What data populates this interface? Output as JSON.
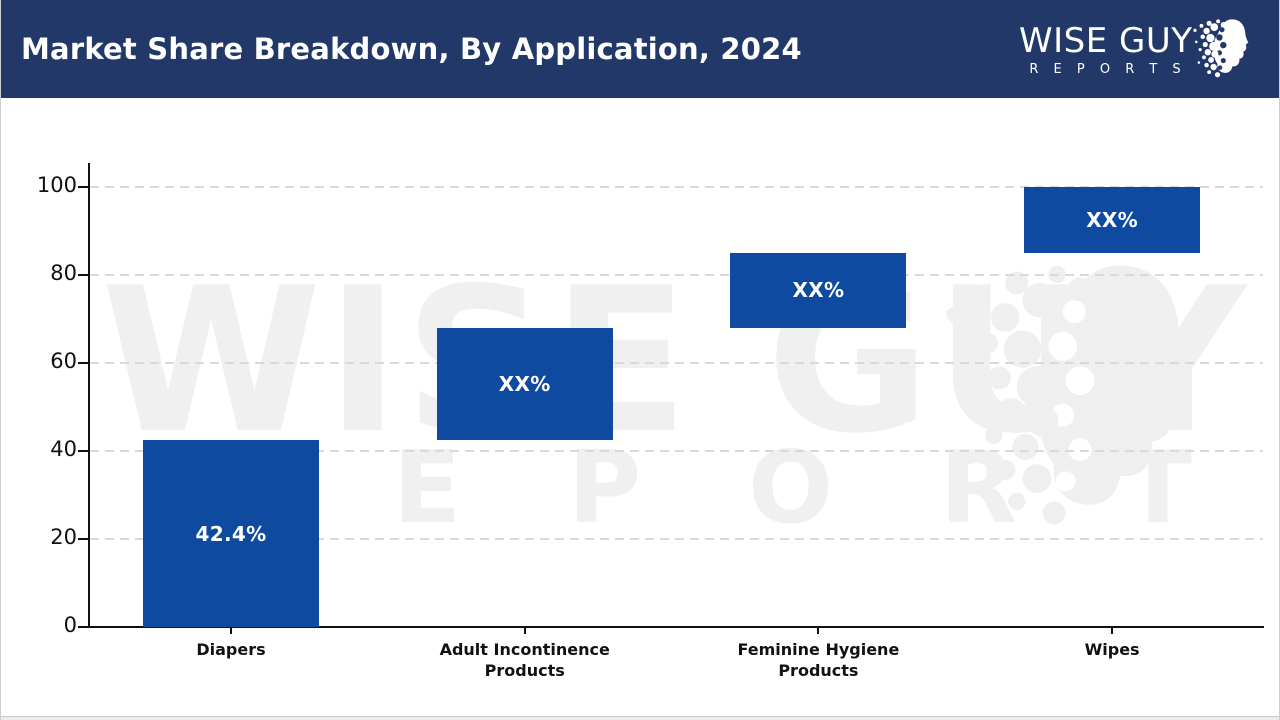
{
  "header": {
    "title": "Market Share Breakdown, By Application, 2024",
    "brand": {
      "name": "WISE GUY",
      "tagline": "R E P O R T S"
    },
    "bg_color": "#213869",
    "text_color": "#ffffff"
  },
  "watermark": {
    "line1": "WISE GUY",
    "line2": "R E P O R T S"
  },
  "chart_data": {
    "type": "bar",
    "subtype": "waterfall",
    "title": "Market Share Breakdown, By Application, 2024",
    "categories": [
      "Diapers",
      "Adult Incontinence\nProducts",
      "Feminine Hygiene\nProducts",
      "Wipes"
    ],
    "series": [
      {
        "name": "Market share (%)",
        "segments": [
          {
            "category": "Diapers",
            "start": 0,
            "end": 42.4,
            "value": 42.4,
            "label": "42.4%"
          },
          {
            "category": "Adult Incontinence Products",
            "start": 42.4,
            "end": 68,
            "value": 25.6,
            "label": "XX%"
          },
          {
            "category": "Feminine Hygiene Products",
            "start": 68,
            "end": 85,
            "value": 17,
            "label": "XX%"
          },
          {
            "category": "Wipes",
            "start": 85,
            "end": 100,
            "value": 15,
            "label": "XX%"
          }
        ]
      }
    ],
    "xlabel": "",
    "ylabel": "",
    "ylim": [
      0,
      100
    ],
    "yticks": [
      0,
      20,
      40,
      60,
      80,
      100
    ],
    "grid": "horizontal-dashed",
    "legend": "none",
    "style": {
      "bar_color": "#0d4aa0",
      "bar_label_color": "#ffffff",
      "grid_color": "#d9d9d9",
      "axis_color": "#111111"
    }
  }
}
